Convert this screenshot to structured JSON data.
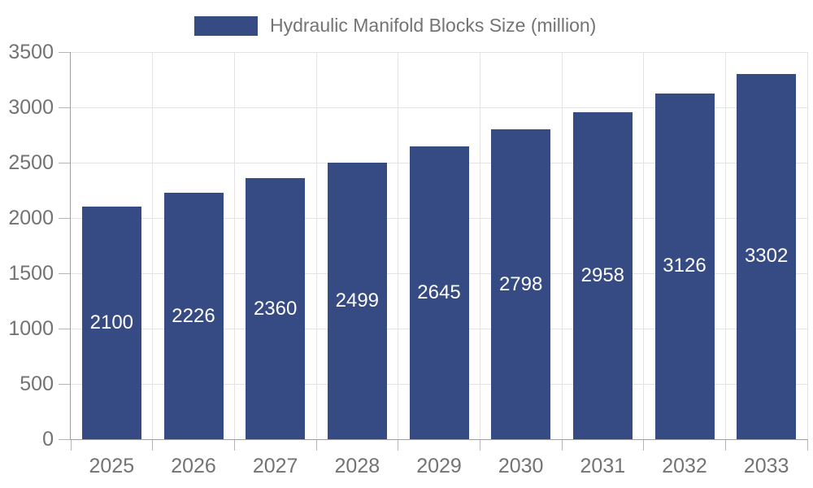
{
  "legend": {
    "label": "Hydraulic Manifold Blocks Size (million)"
  },
  "chart_data": {
    "type": "bar",
    "title": "Hydraulic Manifold Blocks Size (million)",
    "categories": [
      "2025",
      "2026",
      "2027",
      "2028",
      "2029",
      "2030",
      "2031",
      "2032",
      "2033"
    ],
    "values": [
      2100,
      2226,
      2360,
      2499,
      2645,
      2798,
      2958,
      3126,
      3302
    ],
    "xlabel": "",
    "ylabel": "",
    "ylim": [
      0,
      3500
    ],
    "yticks": [
      0,
      500,
      1000,
      1500,
      2000,
      2500,
      3000,
      3500
    ],
    "grid": true,
    "legend_position": "top",
    "bar_color": "#364a83",
    "bar_value_label_color": "#ffffff",
    "text_color": "#737373",
    "grid_color": "#e3e3e3",
    "axis_color": "#9e9e9e",
    "tick_color": "#b5b5b5"
  }
}
